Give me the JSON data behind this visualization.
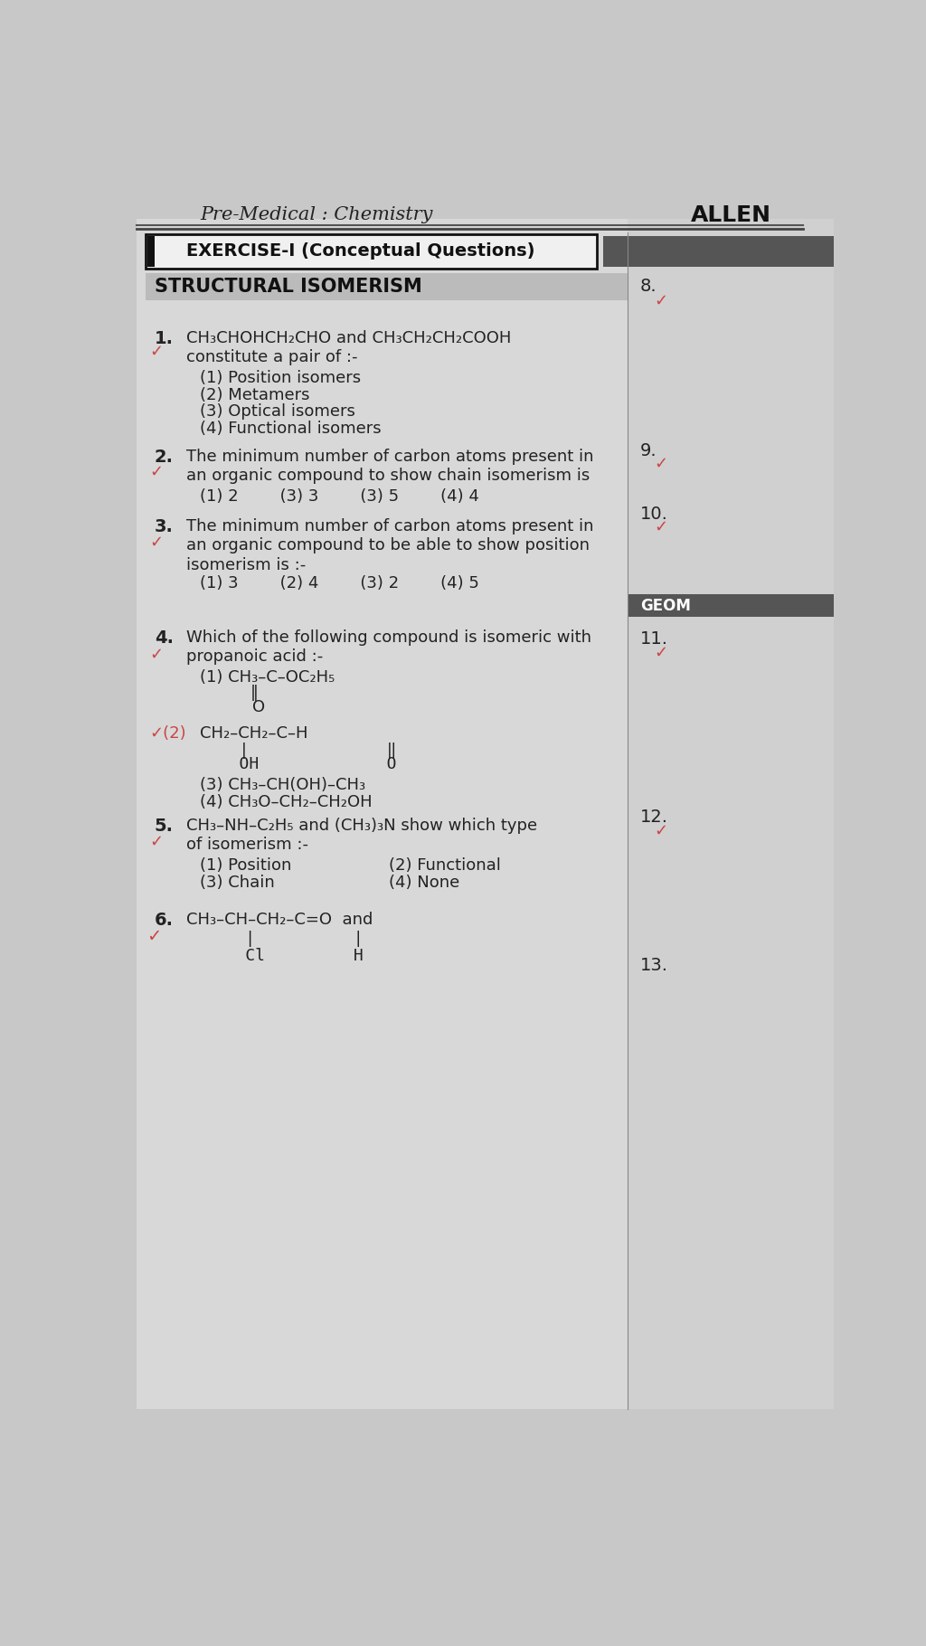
{
  "bg_color": "#c8c8c8",
  "title_text": "Pre-Medical : Chemistry",
  "allen_text": "ALLEN",
  "exercise_text": "EXERCISE-I (Conceptual Questions)",
  "section_text": "STRUCTURAL ISOMERISM",
  "q1_num": "1.",
  "q1_text1": "CH₃CHOHCH₂CHO and CH₃CH₂CH₂COOH",
  "q1_text2": "constitute a pair of :-",
  "q1_opt1": "(1) Position isomers",
  "q1_opt2": "(2) Metamers",
  "q1_opt3": "(3) Optical isomers",
  "q1_opt4": "(4) Functional isomers",
  "q2_num": "2.",
  "q2_text1": "The minimum number of carbon atoms present in",
  "q2_text2": "an organic compound to show chain isomerism is",
  "q2_opts": "(1) 2        (3) 3        (3) 5        (4) 4",
  "q3_num": "3.",
  "q3_text1": "The minimum number of carbon atoms present in",
  "q3_text2": "an organic compound to be able to show position",
  "q3_text3": "isomerism is :-",
  "q3_opts": "(1) 3        (2) 4        (3) 2        (4) 5",
  "q4_num": "4.",
  "q4_text1": "Which of the following compound is isomeric with",
  "q4_text2": "propanoic acid :-",
  "q4_opt1": "(1) CH₃–C–OC₂H₅",
  "q4_opt1_dbl": "‖",
  "q4_opt1_o": "O",
  "q4_opt2": "(2) CH₂–CH₂–C–H",
  "q4_opt2_b": "    |              ‖",
  "q4_opt2_c": "    OH             O",
  "q4_opt3": "(3) CH₃–CH(OH)–CH₃",
  "q4_opt4": "(4) CH₃O–CH₂–CH₂OH",
  "q5_num": "5.",
  "q5_text1": "CH₃–NH–C₂H₅ and (CH₃)₃N show which type",
  "q5_text2": "of isomerism :-",
  "q5_opt1": "(1) Position",
  "q5_opt2": "(2) Functional",
  "q5_opt3": "(3) Chain",
  "q5_opt4": "(4) None",
  "q6_num": "6.",
  "q6_text1": "CH₃–CH–CH₂–C=O  and",
  "q6_text2": "      |          |",
  "q6_text3": "      Cl         H",
  "font_size_title": 15,
  "font_size_allen": 18,
  "font_size_exercise": 14,
  "font_size_section": 15,
  "font_size_q": 13,
  "font_size_qnum": 14
}
